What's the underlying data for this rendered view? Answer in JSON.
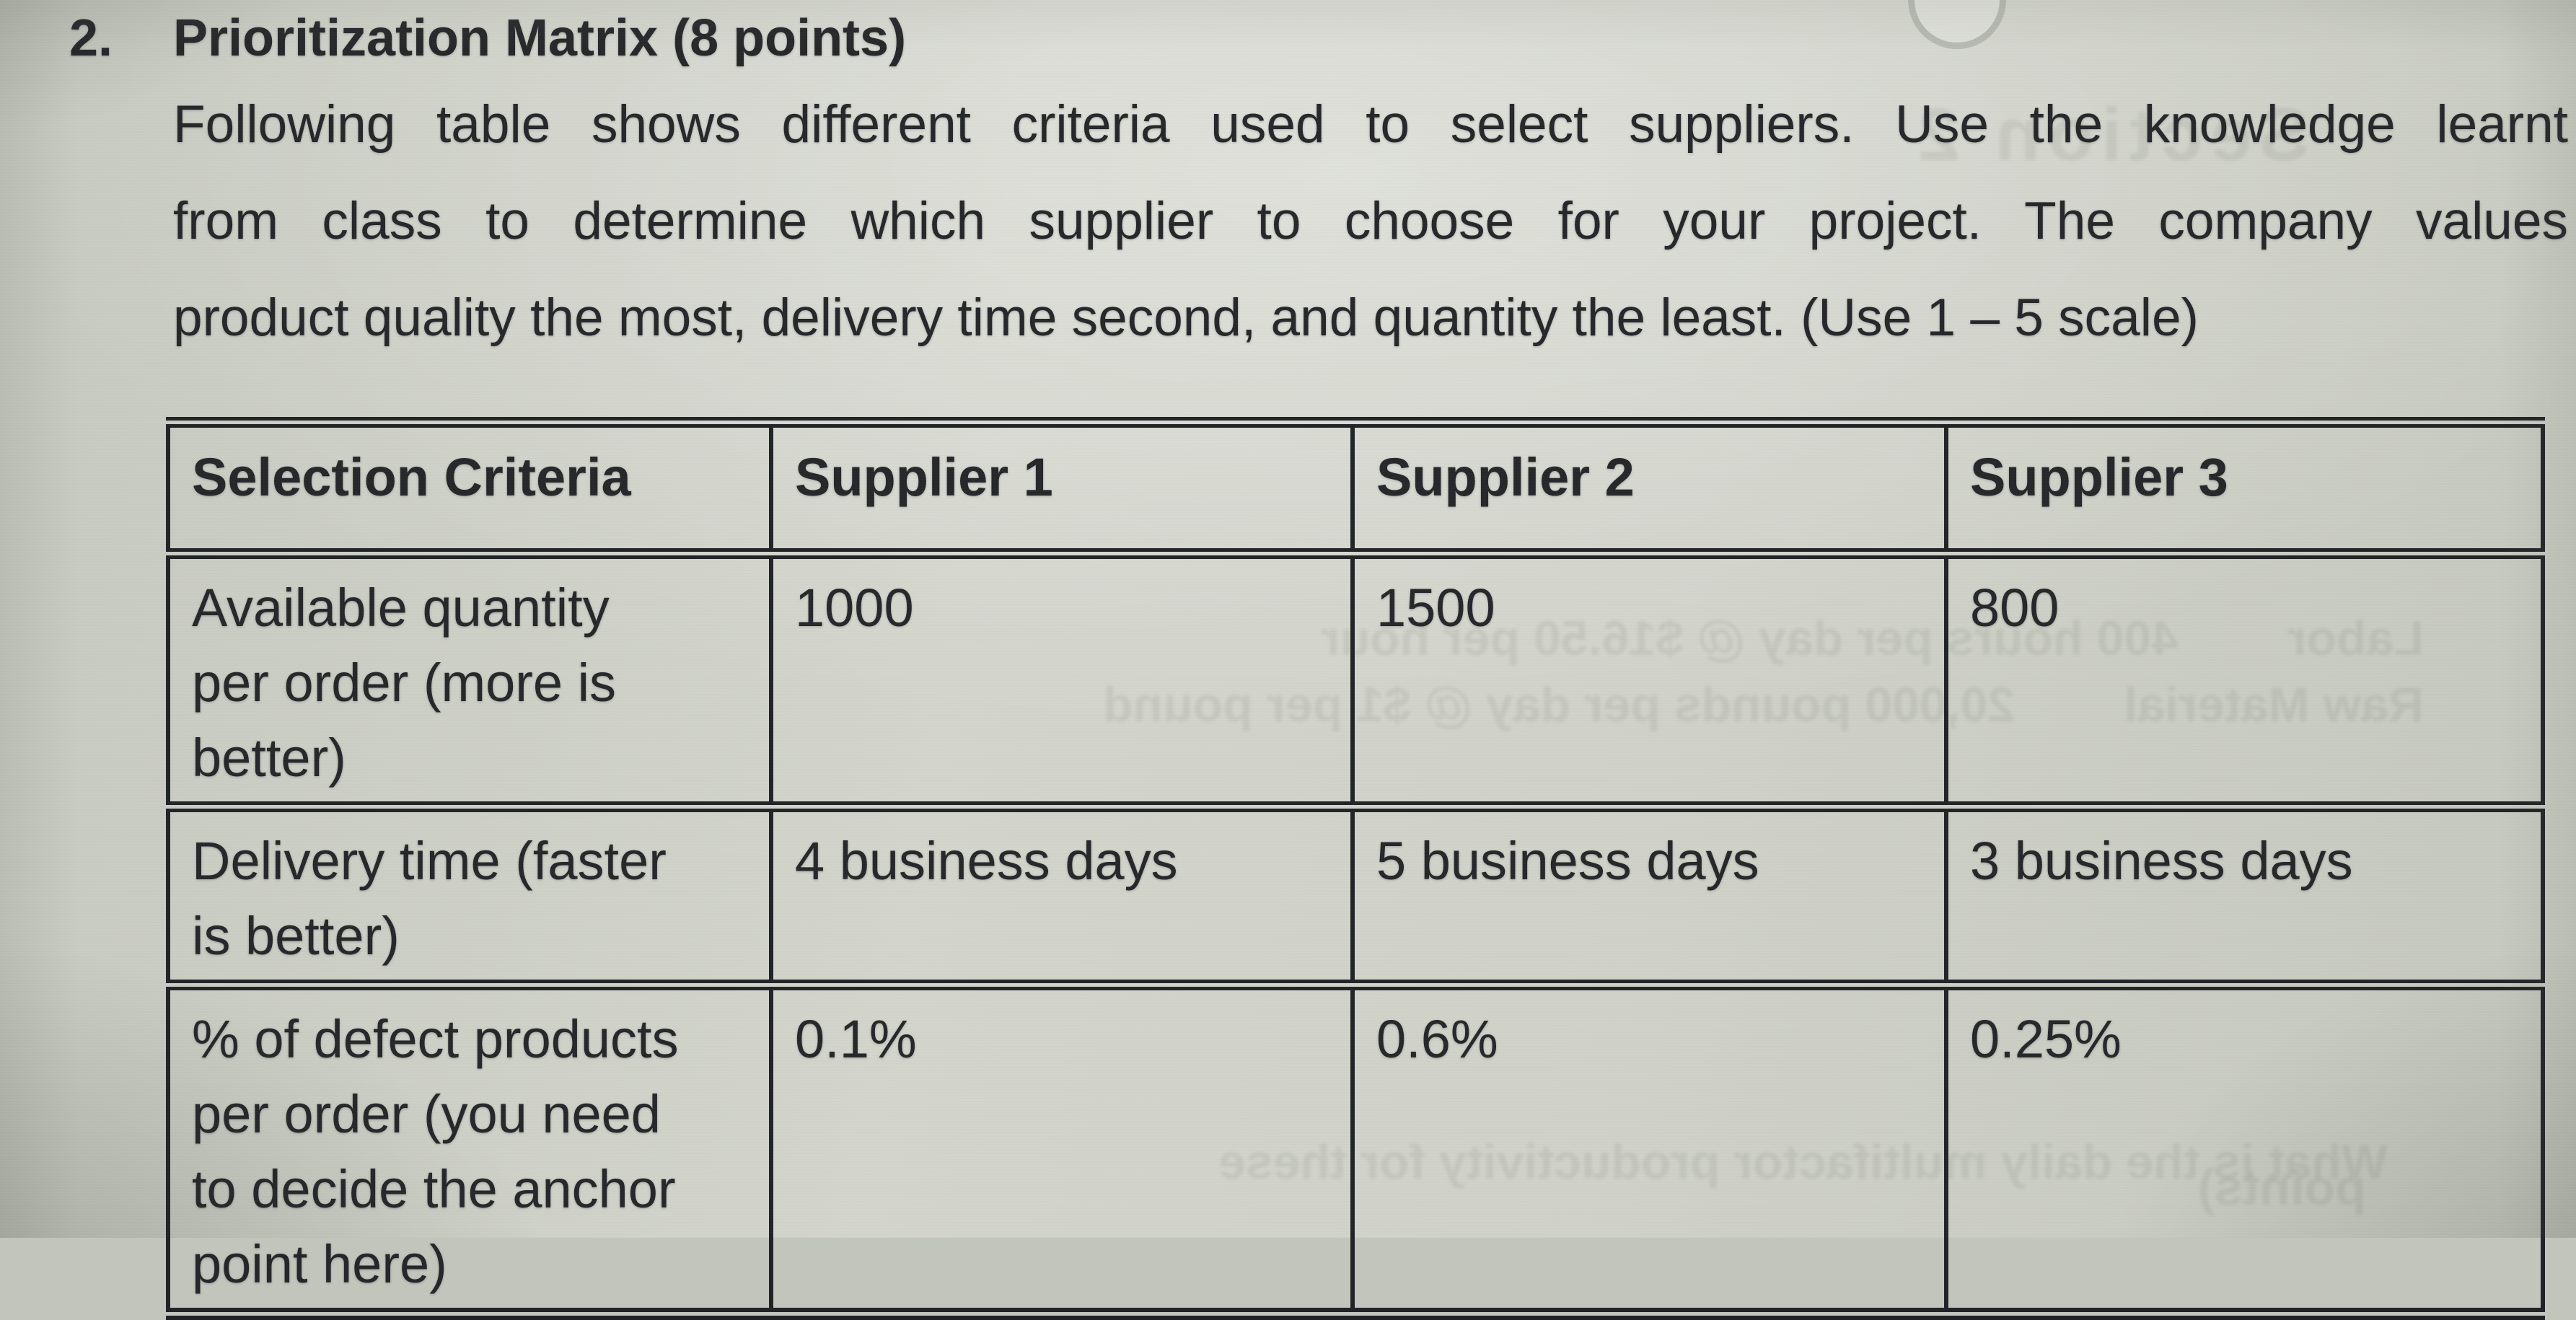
{
  "document": {
    "section_number": "2.",
    "title": "Prioritization Matrix (8 points)",
    "paragraph_lines": [
      "Following table shows different criteria used to select suppliers. Use the knowledge learnt",
      "from class to determine which supplier to choose for your project. The company values",
      "product quality the most, delivery time second, and quantity the least. (Use 1 – 5 scale)"
    ]
  },
  "table": {
    "columns": [
      "Selection Criteria",
      "Supplier 1",
      "Supplier 2",
      "Supplier 3"
    ],
    "rows": [
      {
        "criteria": "Available quantity\nper order (more is\nbetter)",
        "supplier1": "1000",
        "supplier2": "1500",
        "supplier3": "800"
      },
      {
        "criteria": "Delivery time (faster\nis better)",
        "supplier1": "4 business days",
        "supplier2": "5 business days",
        "supplier3": "3 business days"
      },
      {
        "criteria": "% of defect products\nper order (you need\nto decide the anchor\npoint here)",
        "supplier1": "0.1%",
        "supplier2": "0.6%",
        "supplier3": "0.25%"
      }
    ]
  },
  "bleedthrough": {
    "top_right": "Section 2",
    "row1_line1": "Labor        400 hours per day @ $16.50 per hour",
    "row1_line2": "Raw Material        20,000 pounds per day @ $1 per pound",
    "row3_line": "What is the daily multifactor productivity for these",
    "bottom_right": "points)"
  },
  "colors": {
    "paper": "#cdd0c7",
    "ink": "#25272a",
    "table_border": "#212427"
  }
}
